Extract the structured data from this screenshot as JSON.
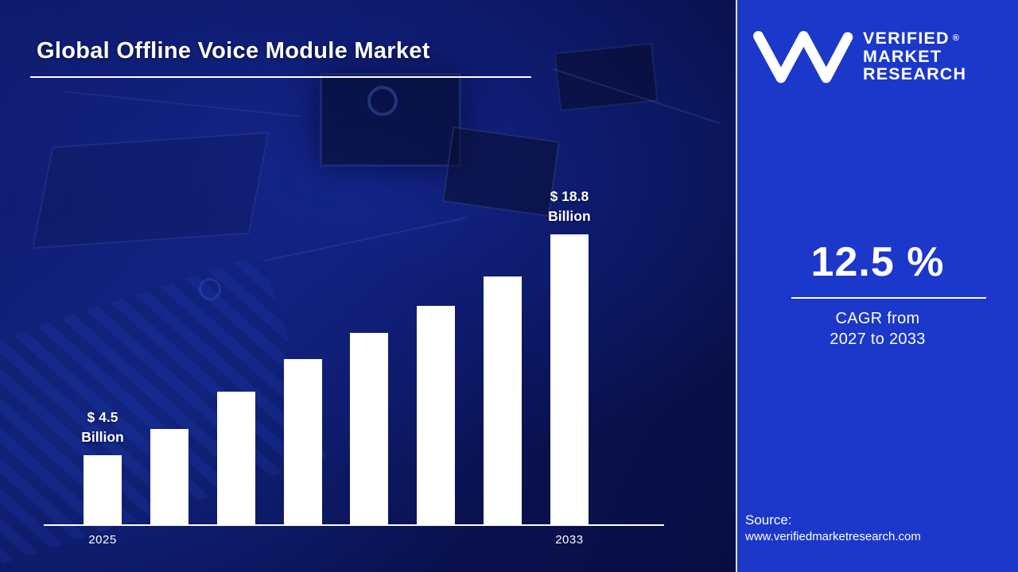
{
  "page": {
    "title": "Global Offline Voice Module Market"
  },
  "logo": {
    "monogram": "vmr-monogram",
    "lines": [
      "VERIFIED",
      "MARKET",
      "RESEARCH"
    ],
    "registered_mark": "®"
  },
  "kpi": {
    "value": "12.5 %",
    "caption_line1": "CAGR from",
    "caption_line2": "2027 to 2033"
  },
  "source": {
    "label": "Source:",
    "url": "www.verifiedmarketresearch.com"
  },
  "colors": {
    "background": "#0a1254",
    "panel": "#1b38cb",
    "bar": "#ffffff",
    "text": "#ffffff"
  },
  "chart_data": {
    "type": "bar",
    "title": "Global Offline Voice Module Market",
    "unit": "USD Billion",
    "categories": [
      "2025",
      "",
      "",
      "",
      "",
      "",
      "",
      "2033"
    ],
    "values": [
      4.5,
      6.2,
      8.6,
      10.7,
      12.4,
      14.2,
      16.1,
      18.8
    ],
    "ylim": [
      0,
      20
    ],
    "bar_color": "#ffffff",
    "grid": false,
    "legend": false,
    "annotations": [
      {
        "bar_index": 0,
        "text": "$ 4.5\nBillion"
      },
      {
        "bar_index": 7,
        "text": "$ 18.8\nBillion"
      }
    ],
    "x_axis_labels_visible": [
      "2025",
      "2033"
    ]
  }
}
